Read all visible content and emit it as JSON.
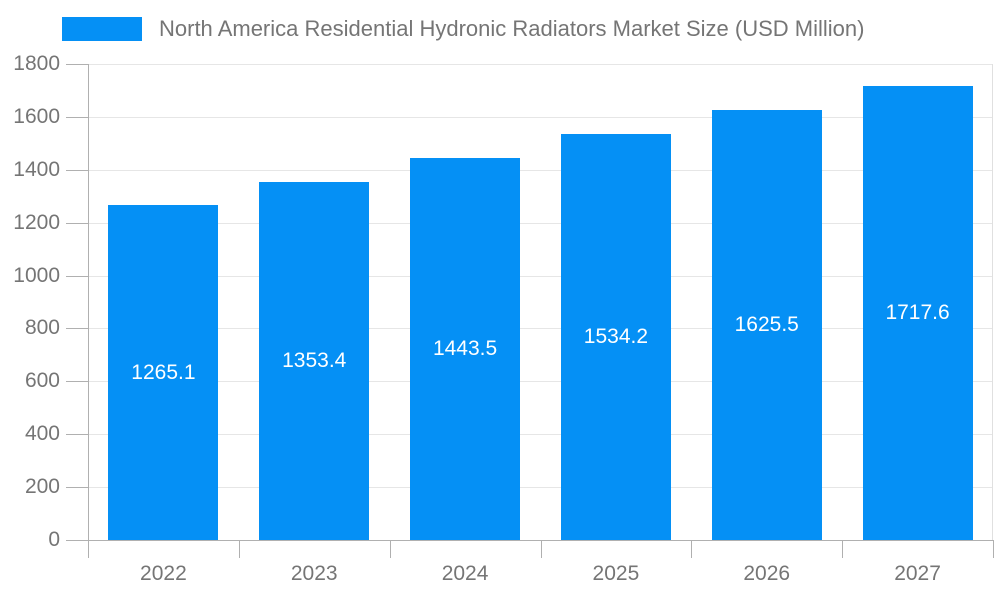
{
  "legend": {
    "label": "North America Residential Hydronic Radiators Market Size (USD Million)"
  },
  "chart_data": {
    "type": "bar",
    "title": "North America Residential Hydronic Radiators Market Size (USD Million)",
    "categories": [
      "2022",
      "2023",
      "2024",
      "2025",
      "2026",
      "2027"
    ],
    "values": [
      1265.1,
      1353.4,
      1443.5,
      1534.2,
      1625.5,
      1717.6
    ],
    "bar_labels": [
      "1265.1",
      "1353.4",
      "1443.5",
      "1534.2",
      "1625.5",
      "1717.6"
    ],
    "xlabel": "",
    "ylabel": "",
    "ylim": [
      0,
      1800
    ],
    "yticks": [
      0,
      200,
      400,
      600,
      800,
      1000,
      1200,
      1400,
      1600,
      1800
    ],
    "grid": true,
    "legend_position": "top",
    "bar_label_position": "center",
    "colors": {
      "bar": "#0590F5",
      "grid": "#e6e6e6",
      "axis": "#b0b0b0",
      "tick_label": "#757575",
      "bar_label": "#ffffff",
      "background": "#ffffff"
    }
  }
}
